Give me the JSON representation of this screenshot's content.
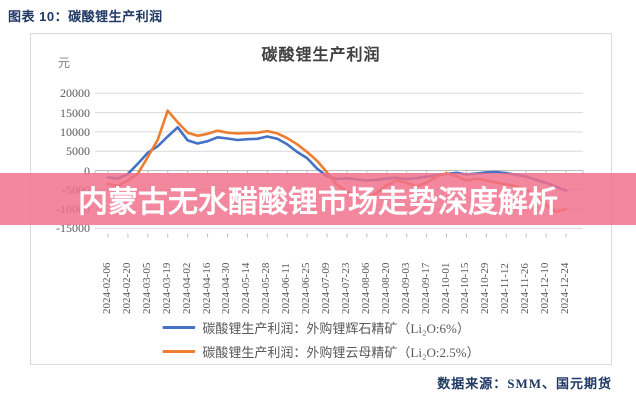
{
  "header": {
    "caption": "图表 10：碳酸锂生产利润"
  },
  "banner": {
    "text": "内蒙古无水醋酸锂市场走势深度解析",
    "background": "#EF708A",
    "text_color": "#FFFFFF"
  },
  "footer": {
    "source": "数据来源：SMM、国元期货"
  },
  "colors": {
    "caption_navy": "#1F3864",
    "gridline": "#D9D9D9",
    "axis": "#BFBFBF",
    "tick_text": "#595959",
    "series_blue": "#4472C4",
    "series_orange": "#ED7D31"
  },
  "chart_data": {
    "type": "line",
    "title": "碳酸锂生产利润",
    "unit_label": "元",
    "ylabel": "元",
    "xlabel": "",
    "grid": true,
    "legend_position": "bottom",
    "ylim": [
      -15000,
      20000
    ],
    "y_ticks": [
      20000,
      15000,
      10000,
      5000,
      0,
      -5000,
      -10000,
      -15000
    ],
    "x_tick_labels": [
      "2024-02-06",
      "2024-02-20",
      "2024-03-05",
      "2024-03-19",
      "2024-04-02",
      "2024-04-16",
      "2024-04-30",
      "2024-05-14",
      "2024-05-28",
      "2024-06-11",
      "2024-06-25",
      "2024-07-09",
      "2024-07-23",
      "2024-08-06",
      "2024-08-20",
      "2024-09-03",
      "2024-09-17",
      "2024-10-01",
      "2024-10-15",
      "2024-10-29",
      "2024-11-12",
      "2024-11-26",
      "2024-12-10",
      "2024-12-24"
    ],
    "x_start_date": "2024-02-06",
    "x_step_days_per_point": 7,
    "series": [
      {
        "name": "碳酸锂生产利润：外购锂辉石精矿（Li₂O:6%）",
        "color": "#4472C4",
        "values": [
          -1800,
          -2100,
          -900,
          1800,
          4600,
          6300,
          8800,
          11200,
          7800,
          7000,
          7600,
          8600,
          8300,
          7900,
          8100,
          8200,
          8800,
          8200,
          6800,
          4800,
          3200,
          500,
          -1500,
          -2200,
          -2000,
          -2300,
          -2600,
          -2400,
          -2100,
          -1900,
          -2200,
          -2000,
          -1600,
          -1200,
          -900,
          -600,
          -1000,
          -800,
          -500,
          -400,
          -700,
          -1100,
          -1600,
          -2400,
          -3200,
          -4200,
          -5200
        ]
      },
      {
        "name": "碳酸锂生产利润：外购锂云母精矿（Li₂O:2.5%）",
        "color": "#ED7D31",
        "values": [
          -3500,
          -4000,
          -2600,
          -800,
          3500,
          8000,
          15500,
          12500,
          9800,
          9000,
          9500,
          10300,
          9800,
          9600,
          9700,
          9800,
          10200,
          9600,
          8400,
          6800,
          4800,
          2500,
          -500,
          -3700,
          -5500,
          -6500,
          -7000,
          -5800,
          -3800,
          -2600,
          -3200,
          -4100,
          -3100,
          -1600,
          -700,
          -1500,
          -2600,
          -2100,
          -2600,
          -3100,
          -3600,
          -4100,
          -5000,
          -7000,
          -9000,
          -10700,
          -10000
        ]
      }
    ]
  }
}
